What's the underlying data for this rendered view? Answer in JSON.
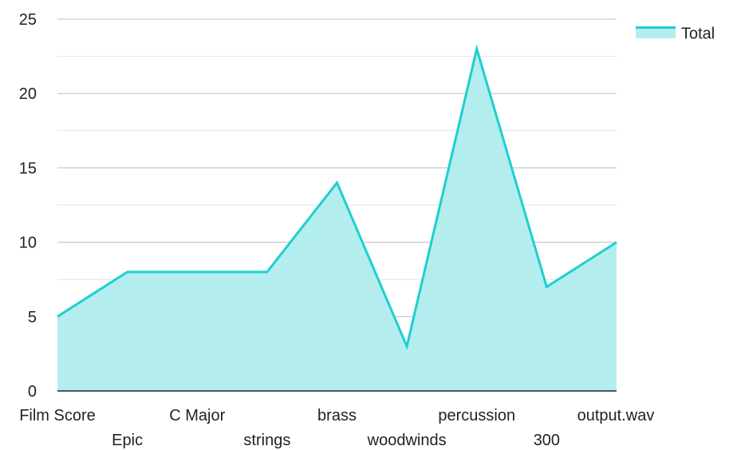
{
  "chart_data": {
    "type": "area",
    "categories": [
      "Film Score",
      "Epic",
      "C Major",
      "strings",
      "brass",
      "woodwinds",
      "percussion",
      "300",
      "output.wav"
    ],
    "series": [
      {
        "name": "Total",
        "values": [
          5,
          8,
          8,
          8,
          14,
          3,
          23,
          7,
          10
        ]
      }
    ],
    "ylim": [
      0,
      25
    ],
    "yticks": [
      "0",
      "5",
      "10",
      "15",
      "20",
      "25"
    ],
    "grid": true,
    "legend": "top-right",
    "colors": {
      "line": "#1ecfcf",
      "fill": "#b3eded",
      "grid_major": "#bdbdbd",
      "grid_minor": "#e3e3e3",
      "axis": "#222222"
    }
  }
}
